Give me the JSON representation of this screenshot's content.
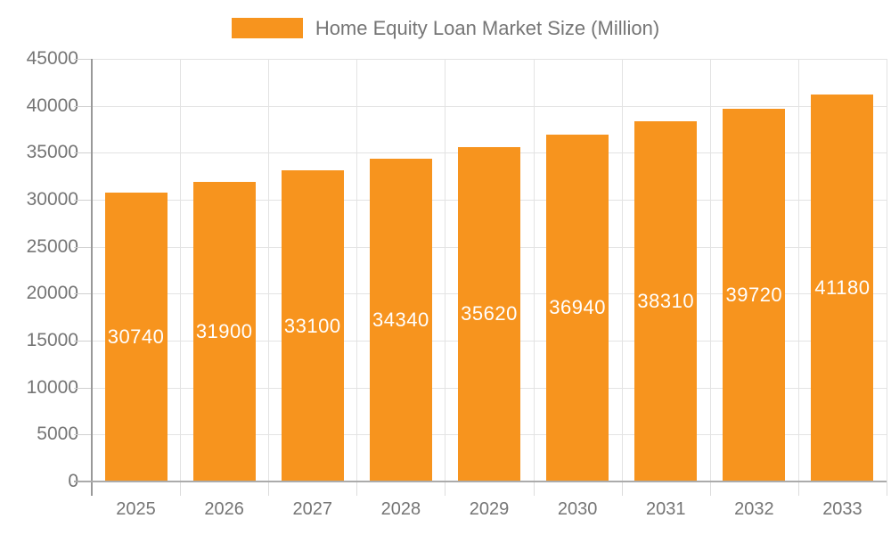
{
  "legend": {
    "label": "Home Equity Loan Market Size (Million)"
  },
  "chart_data": {
    "type": "bar",
    "title": "Home Equity Loan Market Size (Million)",
    "categories": [
      "2025",
      "2026",
      "2027",
      "2028",
      "2029",
      "2030",
      "2031",
      "2032",
      "2033"
    ],
    "series": [
      {
        "name": "Home Equity Loan Market Size (Million)",
        "values": [
          30740,
          31900,
          33100,
          34340,
          35620,
          36940,
          38310,
          39720,
          41180
        ]
      }
    ],
    "xlabel": "",
    "ylabel": "",
    "ylim": [
      0,
      45000
    ],
    "yticks": [
      0,
      5000,
      10000,
      15000,
      20000,
      25000,
      30000,
      35000,
      40000,
      45000
    ],
    "grid": true,
    "legend_position": "top",
    "data_label_position": "inside-center",
    "colors": {
      "bar": "#F7941E",
      "data_label": "#FFFFFF",
      "tick_label": "#757575",
      "legend_text": "#757575",
      "gridline": "#E3E3E3",
      "axis_line": "#9E9E9E",
      "background": "#FFFFFF"
    }
  }
}
